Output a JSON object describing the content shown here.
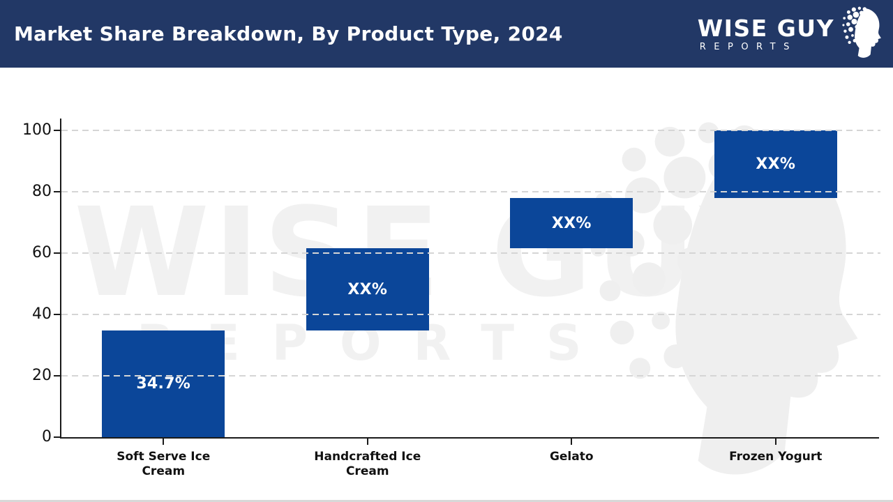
{
  "header": {
    "title": "Market Share Breakdown, By Product Type, 2024",
    "logo": {
      "wordmark": "WISE GUY",
      "subtext": "REPORTS"
    }
  },
  "watermark": {
    "wordmark": "WISE GUY",
    "subtext": "REPORTS"
  },
  "colors": {
    "header_bg": "#223866",
    "bar_blue": "#0b4699",
    "grid_gray": "#d5d5d5",
    "axis_black": "#1a1a1a",
    "watermark_gray": "#f1f1f1",
    "value_label_white": "#ffffff"
  },
  "chart_data": {
    "type": "bar",
    "subtype": "floating-waterfall",
    "title": "Market Share Breakdown, By Product Type, 2024",
    "categories": [
      "Soft Serve Ice Cream",
      "Handcrafted Ice Cream",
      "Gelato",
      "Frozen Yogurt"
    ],
    "segments": [
      {
        "category": "Soft Serve Ice Cream",
        "start": 0,
        "end": 34.7,
        "label": "34.7%"
      },
      {
        "category": "Handcrafted Ice Cream",
        "start": 34.7,
        "end": 61.5,
        "label": "XX%"
      },
      {
        "category": "Gelato",
        "start": 61.5,
        "end": 77.9,
        "label": "XX%"
      },
      {
        "category": "Frozen Yogurt",
        "start": 77.9,
        "end": 100,
        "label": "XX%"
      }
    ],
    "ylim": [
      0,
      100
    ],
    "yticks": [
      0,
      20,
      40,
      60,
      80,
      100
    ],
    "xlabel": "",
    "ylabel": "",
    "grid": "horizontal dashed gray, drawn over bars",
    "legend": "none"
  }
}
